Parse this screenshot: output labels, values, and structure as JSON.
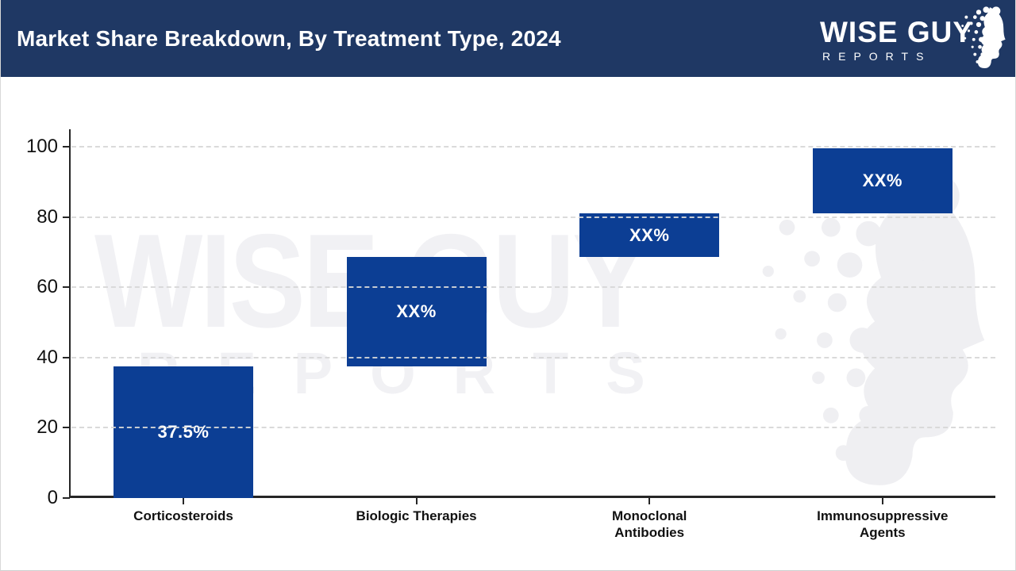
{
  "header": {
    "title": "Market Share Breakdown, By Treatment Type, 2024",
    "logo": {
      "line1": "WISE GUY",
      "line2": "REPORTS"
    }
  },
  "watermark": {
    "line1": "WISE GUY",
    "line2": "REPORTS"
  },
  "chart_data": {
    "type": "bar",
    "subtype": "waterfall",
    "title": "Market Share Breakdown, By Treatment Type, 2024",
    "categories": [
      "Corticosteroids",
      "Biologic Therapies",
      "Monoclonal Antibodies",
      "Immunosuppressive Agents"
    ],
    "category_lines": [
      [
        "Corticosteroids"
      ],
      [
        "Biologic Therapies"
      ],
      [
        "Monoclonal",
        "Antibodies"
      ],
      [
        "Immunosuppressive",
        "Agents"
      ]
    ],
    "segments": [
      {
        "category": "Corticosteroids",
        "start": 0,
        "end": 37.5,
        "label": "37.5%"
      },
      {
        "category": "Biologic Therapies",
        "start": 37.5,
        "end": 68.5,
        "label": "XX%"
      },
      {
        "category": "Monoclonal Antibodies",
        "start": 68.5,
        "end": 81,
        "label": "XX%"
      },
      {
        "category": "Immunosuppressive Agents",
        "start": 81,
        "end": 99.5,
        "label": "XX%"
      }
    ],
    "xlabel": "",
    "ylabel": "",
    "ylim": [
      0,
      100
    ],
    "yticks": [
      0,
      20,
      40,
      60,
      80,
      100
    ],
    "grid": "horizontal-dashed",
    "legend": "none",
    "bar_color": "#0c3e94",
    "bar_label_color": "#ffffff"
  },
  "colors": {
    "header_bg": "#1f3864",
    "bar": "#0c3e94",
    "grid": "#d7d7d7",
    "axis": "#262626",
    "watermark": "#f1f1f4"
  }
}
